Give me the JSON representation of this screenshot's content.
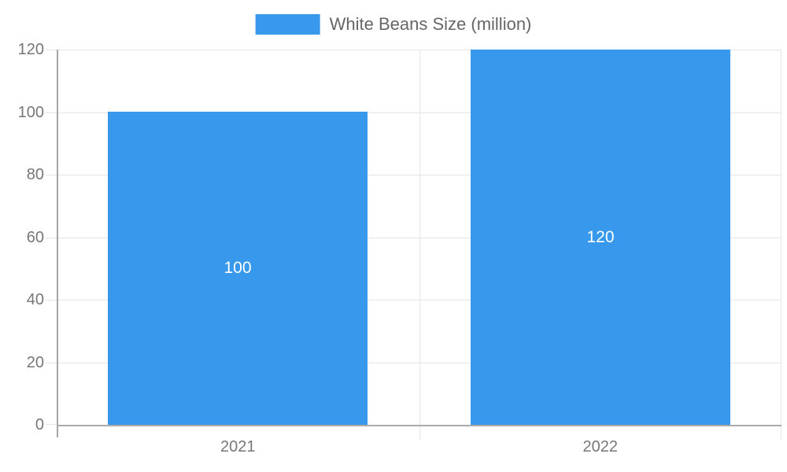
{
  "legend": {
    "label": "White Beans Size (million)"
  },
  "chart_data": {
    "type": "bar",
    "title": "",
    "categories": [
      "2021",
      "2022"
    ],
    "series": [
      {
        "name": "White Beans Size (million)",
        "values": [
          100,
          120
        ],
        "data_labels": [
          "100",
          "120"
        ]
      }
    ],
    "xlabel": "",
    "ylabel": "",
    "ylim": [
      0,
      120
    ],
    "yticks": [
      0,
      20,
      40,
      60,
      80,
      100,
      120
    ],
    "grid": true,
    "legend_position": "top-center",
    "colors": {
      "bar": "#3899ec",
      "grid": "#e5e5e5",
      "axis_line": "#a5a5a5",
      "baseline": "#ababab",
      "tick_label": "#777777",
      "legend_text": "#666666",
      "bar_label": "#ffffff",
      "background": "#ffffff"
    }
  }
}
